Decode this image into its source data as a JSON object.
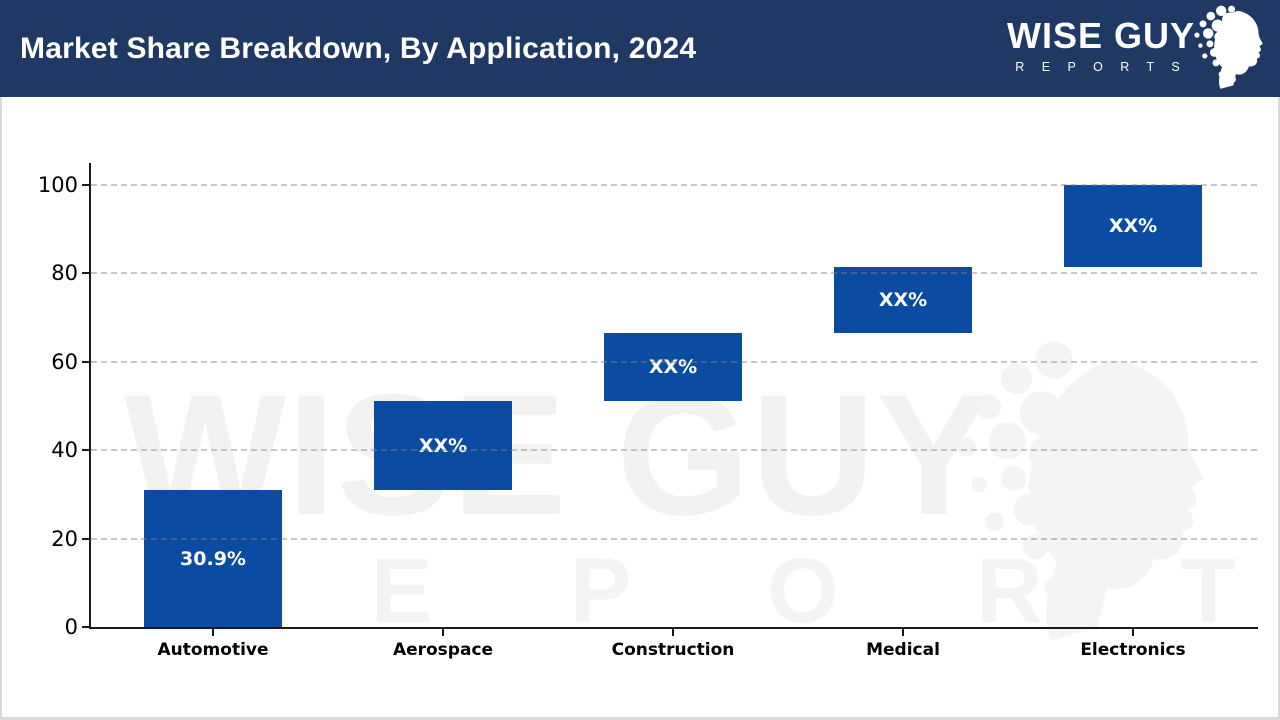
{
  "header": {
    "title": "Market Share Breakdown, By Application, 2024",
    "bg_color": "#1f3864",
    "logo": {
      "line1": "WISE GUY",
      "line2": "R E P O R T S",
      "head_icon": "dotted-head-profile"
    }
  },
  "watermark": {
    "line1": "WISE GUY",
    "line2": "R E P O R T S",
    "head_icon": "dotted-head-profile"
  },
  "chart_data": {
    "type": "bar",
    "subtype": "waterfall",
    "title": "Market Share Breakdown, By Application, 2024",
    "categories": [
      "Automotive",
      "Aerospace",
      "Construction",
      "Medical",
      "Electronics"
    ],
    "segments": [
      {
        "category": "Automotive",
        "start": 0,
        "end": 30.9,
        "label": "30.9%"
      },
      {
        "category": "Aerospace",
        "start": 30.9,
        "end": 51.2,
        "label": "XX%"
      },
      {
        "category": "Construction",
        "start": 51.2,
        "end": 66.6,
        "label": "XX%"
      },
      {
        "category": "Medical",
        "start": 66.6,
        "end": 81.5,
        "label": "XX%"
      },
      {
        "category": "Electronics",
        "start": 81.5,
        "end": 100,
        "label": "XX%"
      }
    ],
    "y_ticks": [
      0,
      20,
      40,
      60,
      80,
      100
    ],
    "ylim": [
      0,
      104
    ],
    "xlabel": "",
    "ylabel": "",
    "grid": "dashed-horizontal",
    "legend": "none",
    "bar_color": "#0b4ca2",
    "bar_label_color": "#ffffff",
    "axis_color": "#1a1a1a",
    "tick_label_color": "#000000"
  }
}
